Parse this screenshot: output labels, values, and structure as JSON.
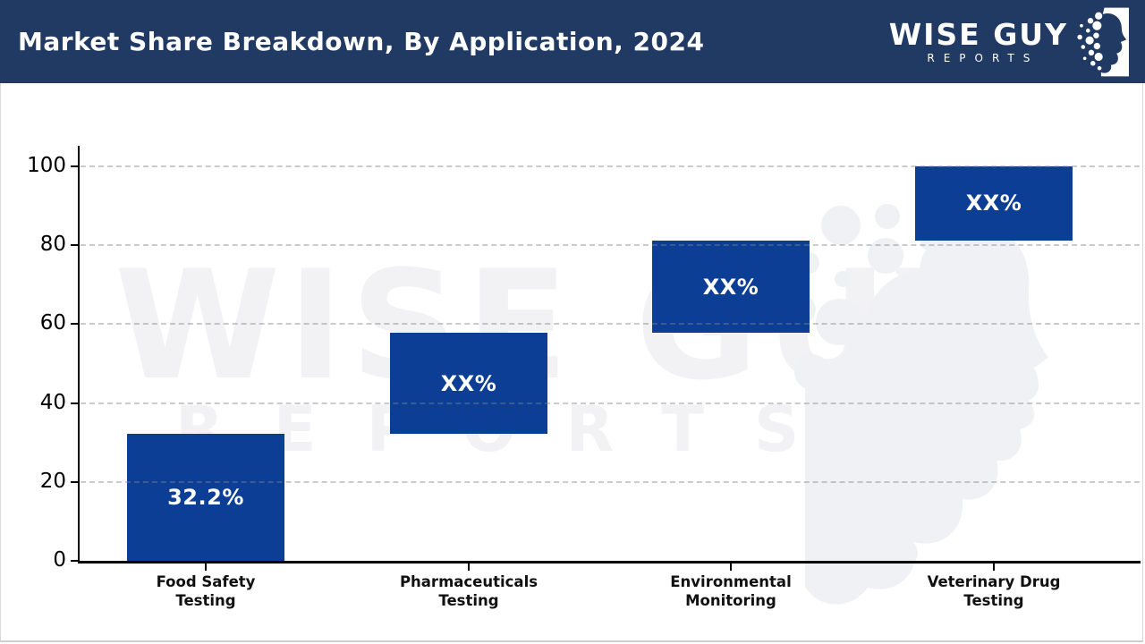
{
  "header": {
    "title": "Market Share Breakdown, By Application, 2024",
    "logo": {
      "line1": "WISE GUY",
      "line2": "REPORTS"
    }
  },
  "watermark": {
    "line1": "WISE GUY",
    "line2": "REPORTS"
  },
  "chart_data": {
    "type": "bar",
    "subtype": "waterfall",
    "title": "Market Share Breakdown, By Application, 2024",
    "categories": [
      "Food Safety\nTesting",
      "Pharmaceuticals\nTesting",
      "Environmental\nMonitoring",
      "Veterinary Drug\nTesting"
    ],
    "bars": [
      {
        "category": "Food Safety Testing",
        "start": 0,
        "end": 32.2,
        "label": "32.2%"
      },
      {
        "category": "Pharmaceuticals Testing",
        "start": 32.2,
        "end": 57.8,
        "label": "XX%"
      },
      {
        "category": "Environmental Monitoring",
        "start": 57.8,
        "end": 81.2,
        "label": "XX%"
      },
      {
        "category": "Veterinary Drug Testing",
        "start": 81.2,
        "end": 100,
        "label": "XX%"
      }
    ],
    "yticks": [
      0,
      20,
      40,
      60,
      80,
      100
    ],
    "ylim": [
      0,
      105
    ],
    "xlabel": "",
    "ylabel": "",
    "grid": true,
    "grid_style": "dashed",
    "legend": "none",
    "bar_color": "#0c3e96",
    "bar_label_color": "#ffffff",
    "axis_color": "#000000",
    "header_color": "#203a63",
    "watermark_color": "#f2f2f4"
  }
}
